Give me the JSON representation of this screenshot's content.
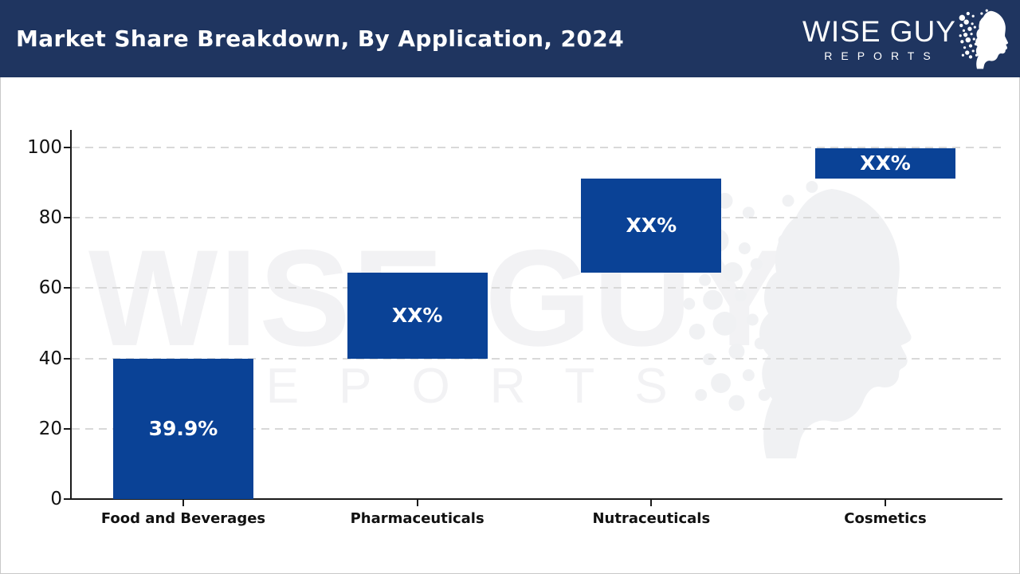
{
  "header": {
    "title": "Market Share Breakdown, By Application, 2024",
    "logo_line1": "WISE GUY",
    "logo_line2": "REPORTS"
  },
  "watermark": {
    "line1": "WISE GUY",
    "line2": "REPORTS"
  },
  "colors": {
    "header_bg": "#1f3560",
    "bar": "#0a4296",
    "bar_label": "#ffffff",
    "grid": "#d9d9d9",
    "axis": "#1a1a1a",
    "watermark": "#f2f2f4"
  },
  "chart_data": {
    "type": "bar",
    "subtype": "floating-waterfall",
    "title": "Market Share Breakdown, By Application, 2024",
    "categories": [
      "Food and Beverages",
      "Pharmaceuticals",
      "Nutraceuticals",
      "Cosmetics"
    ],
    "segments": [
      {
        "category": "Food and Beverages",
        "start": 0,
        "end": 39.9,
        "label": "39.9%"
      },
      {
        "category": "Pharmaceuticals",
        "start": 40,
        "end": 64.5,
        "label": "XX%"
      },
      {
        "category": "Nutraceuticals",
        "start": 64.5,
        "end": 91.2,
        "label": "XX%"
      },
      {
        "category": "Cosmetics",
        "start": 91.2,
        "end": 99.8,
        "label": "XX%"
      }
    ],
    "yticks": [
      0,
      20,
      40,
      60,
      80,
      100
    ],
    "ylim": [
      0,
      105
    ],
    "xlabel": "",
    "ylabel": "",
    "grid": "horizontal-dashed",
    "legend": "none"
  }
}
